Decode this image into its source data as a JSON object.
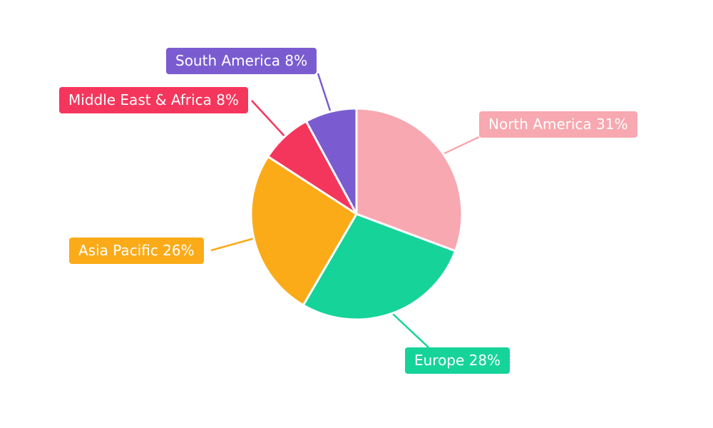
{
  "chart_data": {
    "type": "pie",
    "title": "",
    "legend": "none",
    "background": "#ffffff",
    "start_angle_deg": -90,
    "direction": "clockwise",
    "label_style": "external-boxes-with-leader-lines",
    "slices": [
      {
        "label": "North America",
        "value": 31,
        "display": "North America 31%",
        "color": "#f7a8b0"
      },
      {
        "label": "Europe",
        "value": 28,
        "display": "Europe 28%",
        "color": "#16d39a"
      },
      {
        "label": "Asia Pacific",
        "value": 26,
        "display": "Asia Pacific 26%",
        "color": "#fbab18"
      },
      {
        "label": "Middle East & Africa",
        "value": 8,
        "display": "Middle East & Africa 8%",
        "color": "#f5365c"
      },
      {
        "label": "South America",
        "value": 8,
        "display": "South America 8%",
        "color": "#7a5cd0"
      }
    ]
  }
}
